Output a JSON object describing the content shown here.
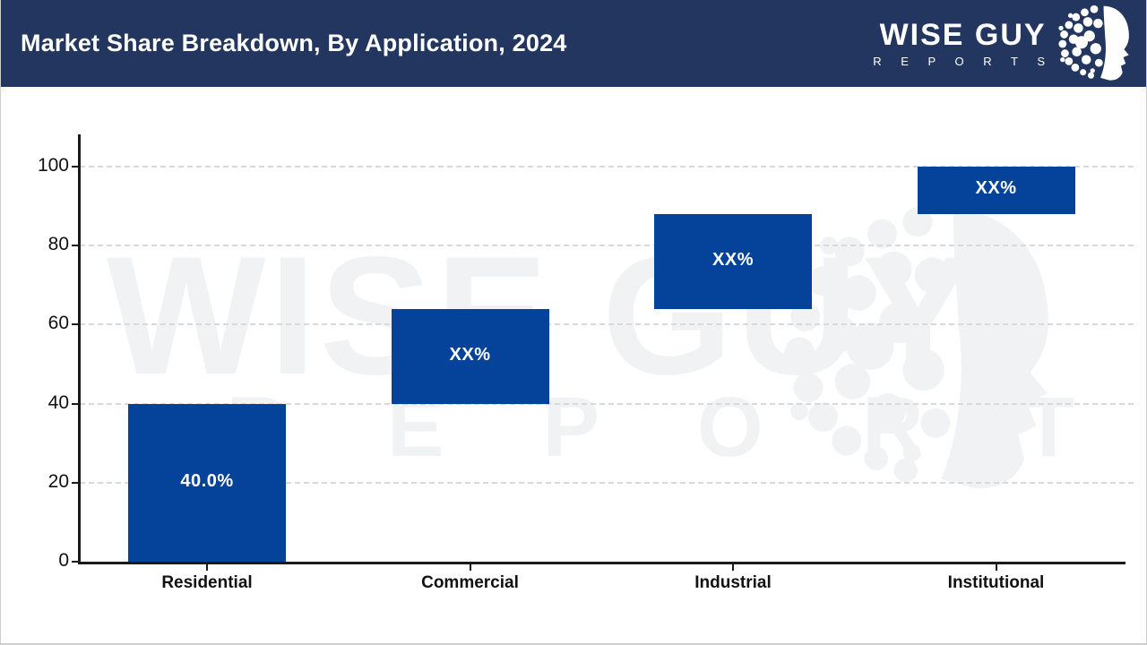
{
  "header": {
    "title": "Market Share Breakdown, By Application, 2024",
    "bg_color": "#22365f",
    "brand": {
      "line1": "WISE GUY",
      "line2": "R E P O R T S"
    }
  },
  "watermark": {
    "line1": "WISE GUY",
    "line2": "R E P O R T S"
  },
  "chart_data": {
    "type": "bar",
    "subtype": "waterfall",
    "title": "Market Share Breakdown, By Application, 2024",
    "categories": [
      "Residential",
      "Commercial",
      "Industrial",
      "Institutional"
    ],
    "series": [
      {
        "name": "Market Share",
        "segments": [
          {
            "category": "Residential",
            "start": 0,
            "end": 40,
            "value": 40,
            "label": "40.0%"
          },
          {
            "category": "Commercial",
            "start": 40,
            "end": 64,
            "value": 24,
            "label": "XX%"
          },
          {
            "category": "Industrial",
            "start": 64,
            "end": 88,
            "value": 24,
            "label": "XX%"
          },
          {
            "category": "Institutional",
            "start": 88,
            "end": 100,
            "value": 12,
            "label": "XX%"
          }
        ]
      }
    ],
    "values": [
      40,
      24,
      24,
      12
    ],
    "bar_labels": [
      "40.0%",
      "XX%",
      "XX%",
      "XX%"
    ],
    "xlabel": "",
    "ylabel": "",
    "ylim": [
      0,
      100
    ],
    "yticks": [
      0,
      20,
      40,
      60,
      80,
      100
    ],
    "grid": "horizontal-dashed",
    "legend": "none",
    "bar_color": "#05439b",
    "bar_label_color": "#ffffff",
    "axis_color": "#1a1a1a",
    "grid_color": "#d9d9d9"
  }
}
